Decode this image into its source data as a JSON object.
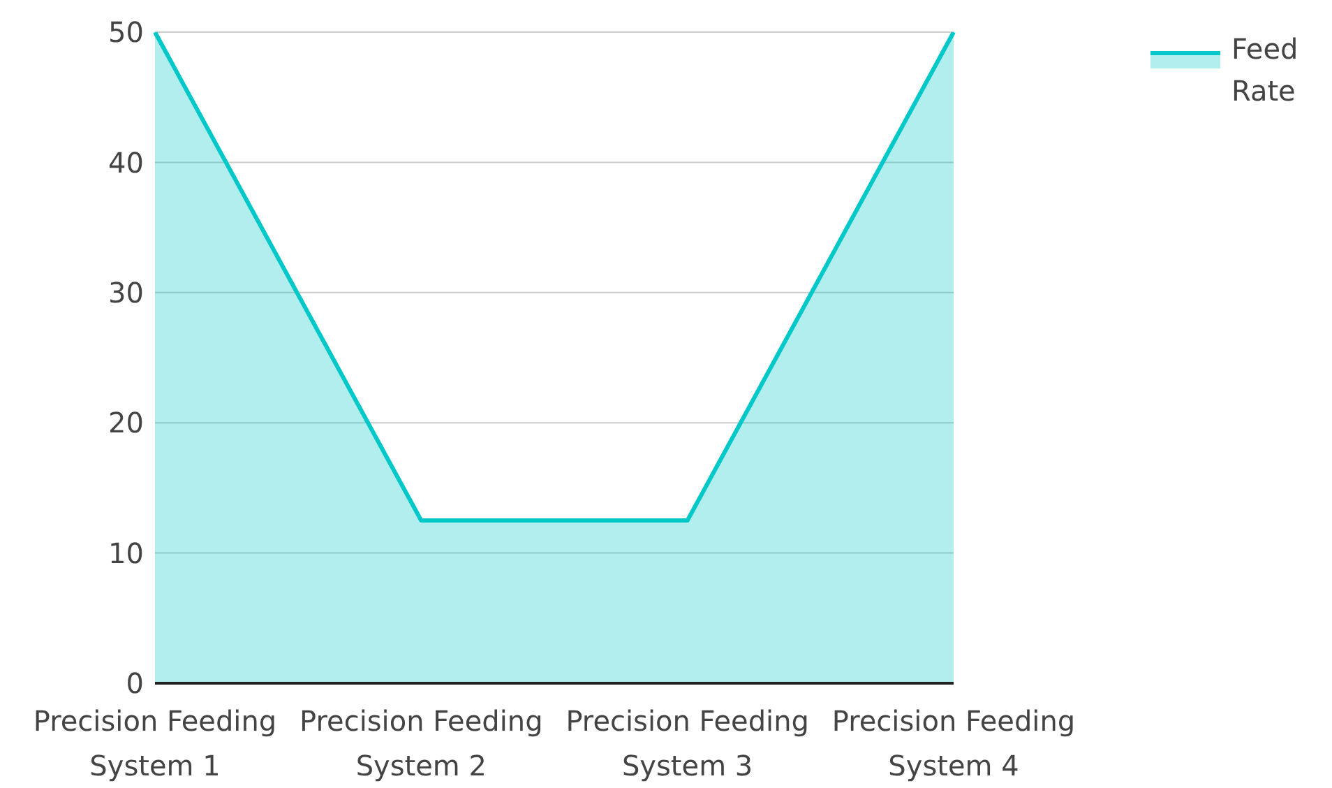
{
  "chart_data": {
    "type": "area",
    "categories": [
      "Precision Feeding System 1",
      "Precision Feeding System 2",
      "Precision Feeding System 3",
      "Precision Feeding System 4"
    ],
    "series": [
      {
        "name": "Feed Rate",
        "color": "#00c8c8",
        "values": [
          50,
          12.5,
          12.5,
          50
        ]
      }
    ],
    "ylim": [
      0,
      50
    ],
    "yticks": [
      0,
      10,
      20,
      30,
      40,
      50
    ],
    "grid": "y",
    "legend": "top right",
    "marker": "none"
  }
}
